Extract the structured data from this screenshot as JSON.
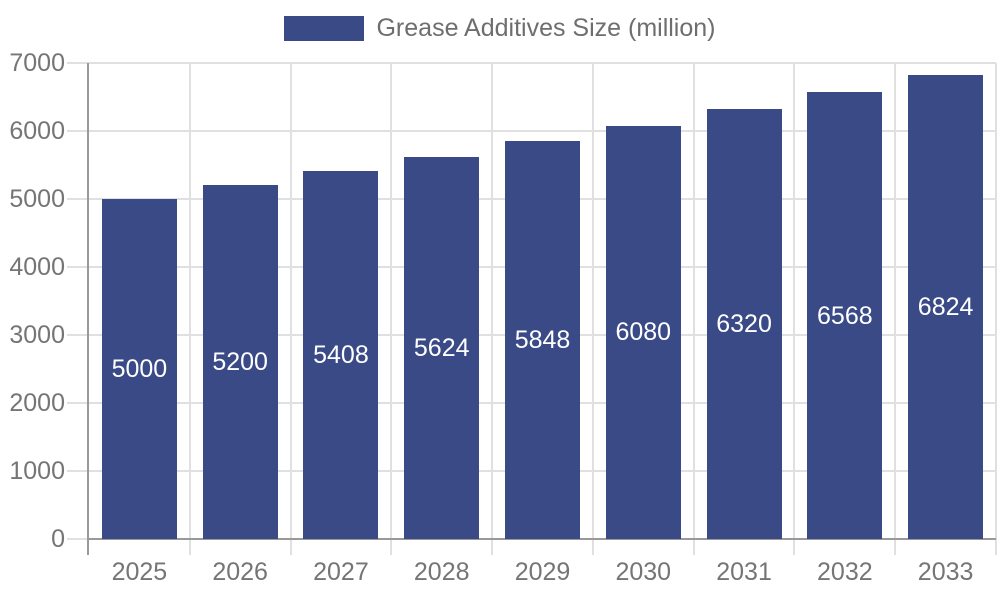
{
  "legend": {
    "label": "Grease Additives Size (million)"
  },
  "colors": {
    "bar": "#3A4A87",
    "axis": "#999999",
    "grid": "#e0e0e0",
    "tick_label": "#757575",
    "legend_text": "#6e6e6e",
    "value_label": "#ffffff",
    "background": "#ffffff"
  },
  "chart_data": {
    "type": "bar",
    "title": "",
    "xlabel": "",
    "ylabel": "",
    "categories": [
      "2025",
      "2026",
      "2027",
      "2028",
      "2029",
      "2030",
      "2031",
      "2032",
      "2033"
    ],
    "series": [
      {
        "name": "Grease Additives Size (million)",
        "values": [
          5000,
          5200,
          5408,
          5624,
          5848,
          6080,
          6320,
          6568,
          6824
        ]
      }
    ],
    "ylim": [
      0,
      7000
    ],
    "ytick_interval": 1000,
    "ytick_labels": [
      "0",
      "1000",
      "2000",
      "3000",
      "4000",
      "5000",
      "6000",
      "7000"
    ],
    "grid": true,
    "legend_position": "top-center",
    "value_labels": "inside-middle"
  }
}
